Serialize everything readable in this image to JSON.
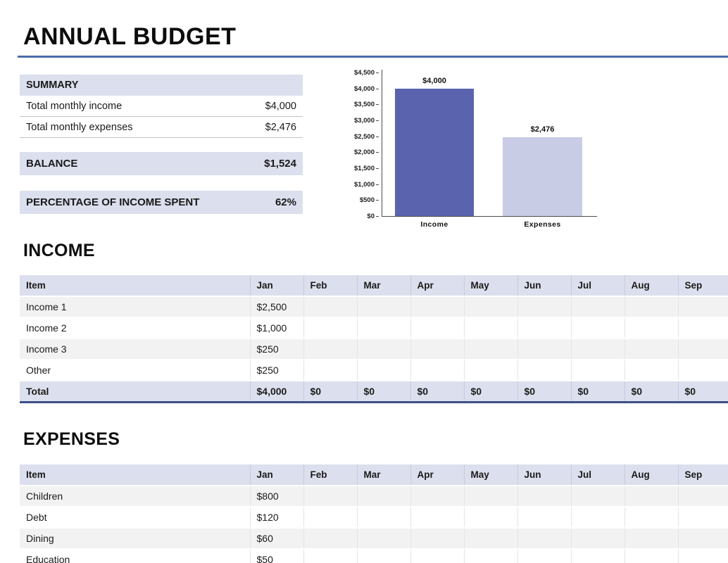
{
  "page": {
    "title": "ANNUAL BUDGET"
  },
  "theme": {
    "accent_rule": "#4a6ca8",
    "panel_bg": "#dcdfed",
    "stripe_bg": "#f2f2f2",
    "total_row_bg": "#dce0ee",
    "total_border": "#3f4e87",
    "axis_color": "#4d4d4d"
  },
  "summary": {
    "header": "SUMMARY",
    "rows": [
      {
        "label": "Total monthly income",
        "value": "$4,000"
      },
      {
        "label": "Total monthly expenses",
        "value": "$2,476"
      }
    ],
    "balance": {
      "label": "BALANCE",
      "value": "$1,524"
    },
    "percentage": {
      "label": "PERCENTAGE OF INCOME SPENT",
      "value": "62%"
    }
  },
  "chart_data": {
    "type": "bar",
    "categories": [
      "Income",
      "Expenses"
    ],
    "values": [
      4000,
      2476
    ],
    "value_labels": [
      "$4,000",
      "$2,476"
    ],
    "bar_colors": [
      "#5a64ae",
      "#c9cce5"
    ],
    "yticks": [
      "$4,500",
      "$4,000",
      "$3,500",
      "$3,000",
      "$2,500",
      "$2,000",
      "$1,500",
      "$1,000",
      "$500",
      "$0"
    ],
    "ylim": [
      0,
      4500
    ],
    "title": "",
    "xlabel": "",
    "ylabel": "",
    "grid": false,
    "legend": false
  },
  "income_section": {
    "title": "INCOME",
    "table": {
      "headers": [
        "Item",
        "Jan",
        "Feb",
        "Mar",
        "Apr",
        "May",
        "Jun",
        "Jul",
        "Aug",
        "Sep"
      ],
      "rows": [
        {
          "item": "Income 1",
          "values": [
            "$2,500",
            "",
            "",
            "",
            "",
            "",
            "",
            "",
            ""
          ]
        },
        {
          "item": "Income 2",
          "values": [
            "$1,000",
            "",
            "",
            "",
            "",
            "",
            "",
            "",
            ""
          ]
        },
        {
          "item": "Income 3",
          "values": [
            "$250",
            "",
            "",
            "",
            "",
            "",
            "",
            "",
            ""
          ]
        },
        {
          "item": "Other",
          "values": [
            "$250",
            "",
            "",
            "",
            "",
            "",
            "",
            "",
            ""
          ]
        }
      ],
      "total": {
        "item": "Total",
        "values": [
          "$4,000",
          "$0",
          "$0",
          "$0",
          "$0",
          "$0",
          "$0",
          "$0",
          "$0"
        ]
      }
    }
  },
  "expenses_section": {
    "title": "EXPENSES",
    "table": {
      "headers": [
        "Item",
        "Jan",
        "Feb",
        "Mar",
        "Apr",
        "May",
        "Jun",
        "Jul",
        "Aug",
        "Sep"
      ],
      "rows": [
        {
          "item": "Children",
          "values": [
            "$800",
            "",
            "",
            "",
            "",
            "",
            "",
            "",
            ""
          ]
        },
        {
          "item": "Debt",
          "values": [
            "$120",
            "",
            "",
            "",
            "",
            "",
            "",
            "",
            ""
          ]
        },
        {
          "item": "Dining",
          "values": [
            "$60",
            "",
            "",
            "",
            "",
            "",
            "",
            "",
            ""
          ]
        },
        {
          "item": "Education",
          "values": [
            "$50",
            "",
            "",
            "",
            "",
            "",
            "",
            "",
            ""
          ]
        }
      ]
    }
  }
}
